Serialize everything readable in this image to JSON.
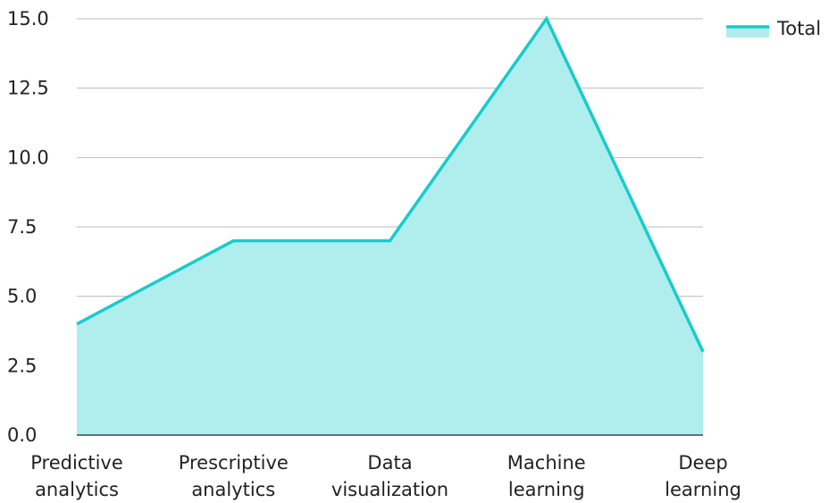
{
  "chart_data": {
    "type": "area",
    "categories": [
      [
        "Predictive",
        "analytics"
      ],
      [
        "Prescriptive",
        "analytics"
      ],
      [
        "Data",
        "visualization"
      ],
      [
        "Machine",
        "learning"
      ],
      [
        "Deep",
        "learning"
      ]
    ],
    "series": [
      {
        "name": "Total",
        "values": [
          4,
          7,
          7,
          15,
          3
        ]
      }
    ],
    "ylim": [
      0,
      15
    ],
    "yticks": [
      "0.0",
      "2.5",
      "5.0",
      "7.5",
      "10.0",
      "12.5",
      "15.0"
    ],
    "grid": true,
    "legend": "top-right",
    "colors": {
      "line": "#17cccc",
      "fill": "#b0eeee",
      "grid": "#bbbbbb",
      "axis": "#444444"
    }
  }
}
